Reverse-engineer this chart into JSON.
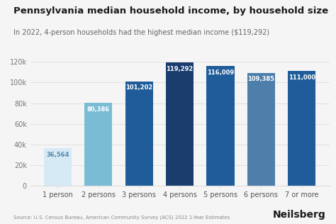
{
  "title": "Pennsylvania median household income, by household size",
  "subtitle": "In 2022, 4-person households had the highest median income ($119,292)",
  "categories": [
    "1 person",
    "2 persons",
    "3 persons",
    "4 persons",
    "5 persons",
    "6 persons",
    "7 or more"
  ],
  "values": [
    36564,
    80386,
    101202,
    119292,
    116009,
    109385,
    111000
  ],
  "bar_colors": [
    "#d6eaf5",
    "#7bbcd5",
    "#1f5c99",
    "#1a3d6e",
    "#1f5c99",
    "#4d7faa",
    "#1f5c99"
  ],
  "value_labels": [
    "36,564",
    "80,386",
    "101,202",
    "119,292",
    "116,009",
    "109,385",
    "111,000"
  ],
  "label_colors": [
    "#5588aa",
    "#ffffff",
    "#ffffff",
    "#ffffff",
    "#ffffff",
    "#ffffff",
    "#ffffff"
  ],
  "ylim": [
    0,
    130000
  ],
  "yticks": [
    0,
    20000,
    40000,
    60000,
    80000,
    100000,
    120000
  ],
  "ytick_labels": [
    "0",
    "20k",
    "40k",
    "60k",
    "80k",
    "100k",
    "120k"
  ],
  "source_text": "Source: U.S. Census Bureau, American Community Survey (ACS) 2022 1-Year Estimates",
  "brand_text": "Neilsberg",
  "background_color": "#f5f5f5",
  "grid_color": "#dddddd",
  "title_fontsize": 9.5,
  "subtitle_fontsize": 7,
  "tick_fontsize": 7,
  "label_fontsize": 6,
  "source_fontsize": 5,
  "brand_fontsize": 10
}
